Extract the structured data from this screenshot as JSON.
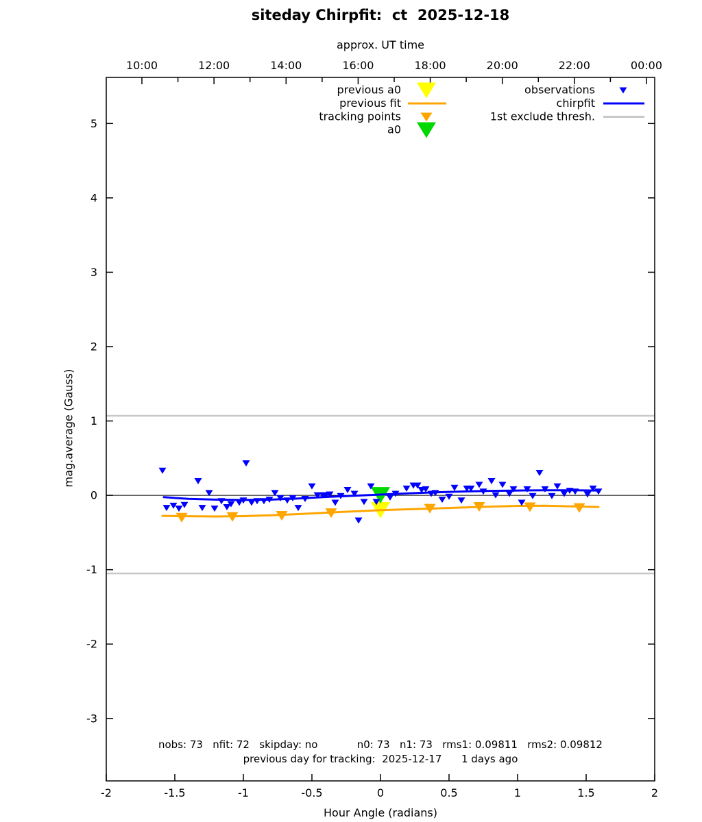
{
  "chart_data": {
    "type": "scatter",
    "title": "siteday Chirpfit:  ct  2025-12-18",
    "x2label": "approx. UT time",
    "xlabel": "Hour Angle (radians)",
    "ylabel": "mag.average (Gauss)",
    "xlim": [
      -2,
      2
    ],
    "ylim": [
      -3.84,
      5.62
    ],
    "grid": false,
    "x_ticks": {
      "values": [
        -2,
        -1.5,
        -1,
        -0.5,
        0,
        0.5,
        1,
        1.5,
        2
      ],
      "labels": [
        "-2",
        "-1.5",
        "-1",
        "-0.5",
        "0",
        "0.5",
        "1",
        "1.5",
        "2"
      ]
    },
    "y_ticks": {
      "values": [
        -3,
        -2,
        -1,
        0,
        1,
        2,
        3,
        4,
        5
      ],
      "labels": [
        "-3",
        "-2",
        "-1",
        "0",
        "1",
        "2",
        "3",
        "4",
        "5"
      ]
    },
    "ut_ticks": {
      "labels": [
        "10:00",
        "12:00",
        "14:00",
        "16:00",
        "18:00",
        "20:00",
        "22:00",
        "00:00"
      ],
      "minor_between": true
    },
    "zero_axis": 0,
    "exclude_thresholds": [
      1.07,
      -1.05
    ],
    "series": {
      "observations": {
        "color": "#0000ff",
        "marker": "triangle-down",
        "points": [
          [
            -1.59,
            0.33
          ],
          [
            -1.56,
            -0.17
          ],
          [
            -1.51,
            -0.14
          ],
          [
            -1.47,
            -0.18
          ],
          [
            -1.43,
            -0.13
          ],
          [
            -1.33,
            0.19
          ],
          [
            -1.3,
            -0.17
          ],
          [
            -1.25,
            0.03
          ],
          [
            -1.21,
            -0.18
          ],
          [
            -1.16,
            -0.08
          ],
          [
            -1.12,
            -0.16
          ],
          [
            -1.09,
            -0.12
          ],
          [
            -1.03,
            -0.1
          ],
          [
            -1.0,
            -0.07
          ],
          [
            -0.98,
            0.43
          ],
          [
            -0.94,
            -0.1
          ],
          [
            -0.9,
            -0.08
          ],
          [
            -0.85,
            -0.08
          ],
          [
            -0.81,
            -0.06
          ],
          [
            -0.77,
            0.03
          ],
          [
            -0.73,
            -0.04
          ],
          [
            -0.68,
            -0.07
          ],
          [
            -0.64,
            -0.04
          ],
          [
            -0.6,
            -0.17
          ],
          [
            -0.55,
            -0.05
          ],
          [
            -0.5,
            0.12
          ],
          [
            -0.46,
            0.0
          ],
          [
            -0.42,
            0.0
          ],
          [
            -0.4,
            0.0
          ],
          [
            -0.37,
            0.01
          ],
          [
            -0.33,
            -0.1
          ],
          [
            -0.29,
            -0.01
          ],
          [
            -0.24,
            0.07
          ],
          [
            -0.19,
            0.02
          ],
          [
            -0.16,
            -0.34
          ],
          [
            -0.12,
            -0.09
          ],
          [
            -0.07,
            0.12
          ],
          [
            -0.03,
            -0.09
          ],
          [
            0.07,
            -0.03
          ],
          [
            0.11,
            0.02
          ],
          [
            0.19,
            0.09
          ],
          [
            0.24,
            0.13
          ],
          [
            0.27,
            0.13
          ],
          [
            0.3,
            0.07
          ],
          [
            0.33,
            0.08
          ],
          [
            0.37,
            0.02
          ],
          [
            0.4,
            0.03
          ],
          [
            0.45,
            -0.06
          ],
          [
            0.5,
            -0.02
          ],
          [
            0.54,
            0.1
          ],
          [
            0.59,
            -0.07
          ],
          [
            0.63,
            0.09
          ],
          [
            0.66,
            0.09
          ],
          [
            0.72,
            0.14
          ],
          [
            0.75,
            0.05
          ],
          [
            0.81,
            0.19
          ],
          [
            0.84,
            0.0
          ],
          [
            0.89,
            0.14
          ],
          [
            0.94,
            0.02
          ],
          [
            0.97,
            0.08
          ],
          [
            1.03,
            -0.1
          ],
          [
            1.07,
            0.08
          ],
          [
            1.11,
            -0.01
          ],
          [
            1.16,
            0.3
          ],
          [
            1.2,
            0.08
          ],
          [
            1.25,
            -0.01
          ],
          [
            1.29,
            0.12
          ],
          [
            1.34,
            0.02
          ],
          [
            1.38,
            0.06
          ],
          [
            1.42,
            0.05
          ],
          [
            1.51,
            0.01
          ],
          [
            1.55,
            0.09
          ],
          [
            1.59,
            0.05
          ]
        ]
      },
      "chirpfit": {
        "color": "#0000ff",
        "type": "line",
        "points": [
          [
            -1.58,
            -0.025
          ],
          [
            -1.4,
            -0.048
          ],
          [
            -1.2,
            -0.058
          ],
          [
            -1.0,
            -0.062
          ],
          [
            -0.8,
            -0.058
          ],
          [
            -0.6,
            -0.042
          ],
          [
            -0.4,
            -0.022
          ],
          [
            -0.2,
            -0.005
          ],
          [
            0,
            0.01
          ],
          [
            0.2,
            0.026
          ],
          [
            0.4,
            0.04
          ],
          [
            0.6,
            0.052
          ],
          [
            0.8,
            0.06
          ],
          [
            1.0,
            0.065
          ],
          [
            1.2,
            0.068
          ],
          [
            1.4,
            0.068
          ],
          [
            1.6,
            0.065
          ]
        ]
      },
      "previous_fit": {
        "color": "#ffa500",
        "type": "line",
        "points": [
          [
            -1.59,
            -0.276
          ],
          [
            -1.4,
            -0.281
          ],
          [
            -1.2,
            -0.284
          ],
          [
            -1.0,
            -0.28
          ],
          [
            -0.8,
            -0.268
          ],
          [
            -0.6,
            -0.252
          ],
          [
            -0.4,
            -0.234
          ],
          [
            -0.2,
            -0.216
          ],
          [
            0,
            -0.2
          ],
          [
            0.2,
            -0.188
          ],
          [
            0.4,
            -0.176
          ],
          [
            0.6,
            -0.164
          ],
          [
            0.8,
            -0.152
          ],
          [
            1.0,
            -0.142
          ],
          [
            1.2,
            -0.14
          ],
          [
            1.4,
            -0.148
          ],
          [
            1.59,
            -0.156
          ]
        ]
      },
      "tracking_points": {
        "color": "#ffa500",
        "marker": "triangle-down-medium",
        "points": [
          [
            -1.45,
            -0.3
          ],
          [
            -1.08,
            -0.29
          ],
          [
            -0.72,
            -0.275
          ],
          [
            -0.36,
            -0.24
          ],
          [
            0.36,
            -0.18
          ],
          [
            0.72,
            -0.155
          ],
          [
            1.09,
            -0.16
          ],
          [
            1.45,
            -0.17
          ]
        ]
      },
      "previous_a0": {
        "color": "#ffff00",
        "marker": "triangle-down-large",
        "points": [
          [
            0,
            -0.2
          ]
        ]
      },
      "a0": {
        "color": "#00d900",
        "marker": "triangle-down-large",
        "points": [
          [
            0,
            0.0
          ]
        ]
      }
    }
  },
  "legend": {
    "left": [
      {
        "label": "previous a0",
        "marker": "triangle-large",
        "color": "#ffff00"
      },
      {
        "label": "previous fit",
        "marker": "line",
        "color": "#ffa500"
      },
      {
        "label": "tracking points",
        "marker": "triangle-small",
        "color": "#ffa500"
      },
      {
        "label": "a0",
        "marker": "triangle-large",
        "color": "#00d900"
      }
    ],
    "right": [
      {
        "label": "observations",
        "marker": "triangle-tiny",
        "color": "#0000ff"
      },
      {
        "label": "chirpfit",
        "marker": "line",
        "color": "#0000ff"
      },
      {
        "label": "1st exclude thresh.",
        "marker": "line",
        "color": "#c8c8c8"
      }
    ]
  },
  "stats": {
    "line1": "nobs: 73   nfit: 72   skipday: no            n0: 73   n1: 73   rms1: 0.09811   rms2: 0.09812",
    "line2": "previous day for tracking:  2025-12-17      1 days ago"
  },
  "colors": {
    "observations": "#0000ff",
    "chirpfit": "#0000ff",
    "previous_fit": "#ffa500",
    "tracking": "#ffa500",
    "previous_a0": "#ffff00",
    "a0": "#00d900",
    "threshold": "#c8c8c8",
    "axis": "#000000"
  }
}
